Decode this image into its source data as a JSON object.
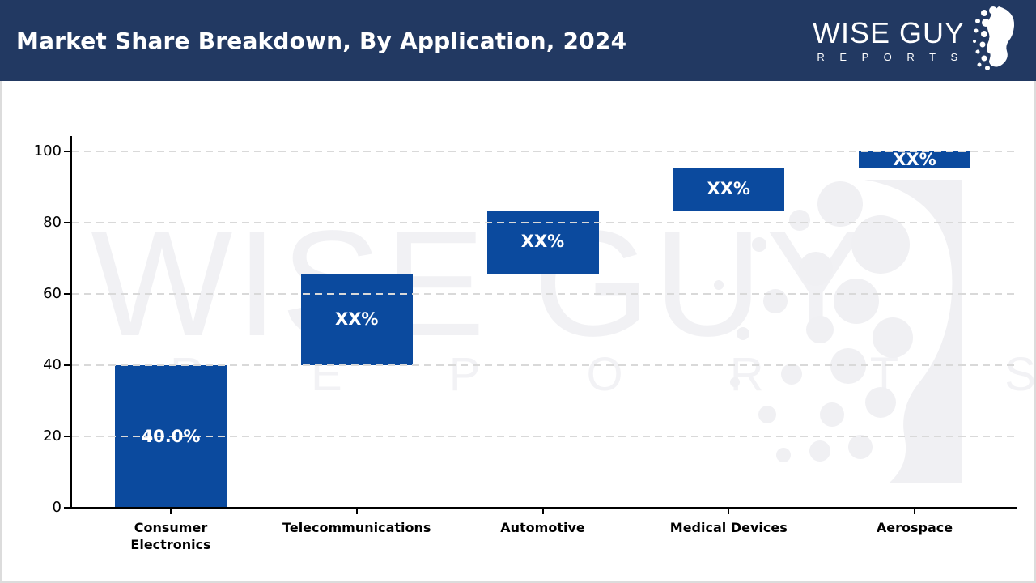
{
  "header": {
    "title": "Market Share Breakdown, By Application, 2024",
    "logo_line1": "WISE GUY",
    "logo_line2": "R E P O R T S"
  },
  "watermark": {
    "line1": "WISE GUY",
    "line2": "R E P O R T S"
  },
  "colors": {
    "header_bg": "#223962",
    "bar": "#0b4a9e",
    "bar_label_text": "#ffffff",
    "gridline": "#d9d9d9",
    "axis": "#000000",
    "watermark": "#f1f1f4"
  },
  "chart_data": {
    "type": "bar",
    "subtype": "waterfall",
    "title": "Market Share Breakdown, By Application, 2024",
    "unit": "%",
    "categories": [
      "Consumer Electronics",
      "Telecommunications",
      "Automotive",
      "Medical Devices",
      "Aerospace"
    ],
    "tick_labels": [
      "Consumer\nElectronics",
      "Telecommunications",
      "Automotive",
      "Medical Devices",
      "Aerospace"
    ],
    "segments": [
      {
        "category": "Consumer Electronics",
        "start": 0,
        "end": 40,
        "label": "40.0%"
      },
      {
        "category": "Telecommunications",
        "start": 40,
        "end": 65.7,
        "label": "XX%"
      },
      {
        "category": "Automotive",
        "start": 65.7,
        "end": 83.4,
        "label": "XX%"
      },
      {
        "category": "Medical Devices",
        "start": 83.4,
        "end": 95.2,
        "label": "XX%"
      },
      {
        "category": "Aerospace",
        "start": 95.2,
        "end": 100,
        "label": "XX%"
      }
    ],
    "y_ticks": [
      0,
      20,
      40,
      60,
      80,
      100
    ],
    "y_tick_labels": [
      "0",
      "20",
      "40",
      "60",
      "80",
      "100"
    ],
    "ylim": [
      0,
      104
    ],
    "grid": "horizontal-dashed",
    "legend": "none"
  }
}
